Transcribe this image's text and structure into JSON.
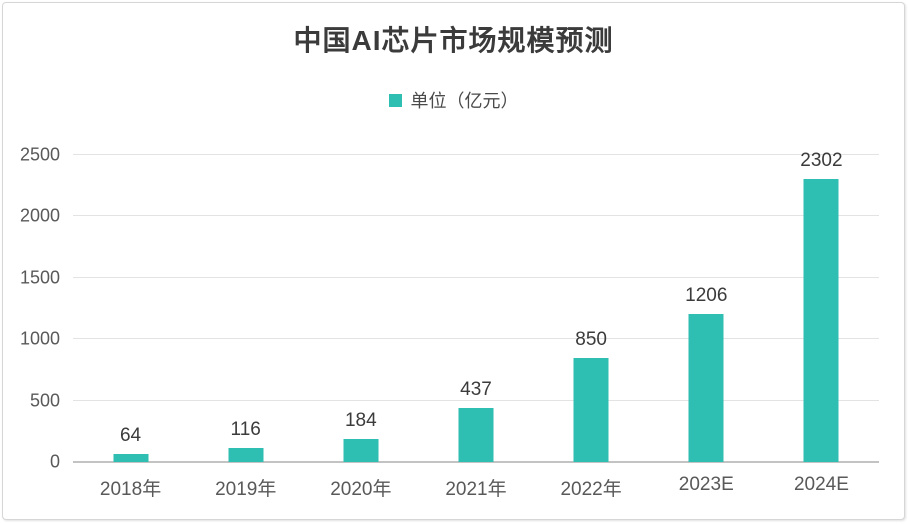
{
  "chart_title": "中国AI芯片市场规模预测",
  "legend": {
    "label": "单位（亿元）"
  },
  "chart_data": {
    "type": "bar",
    "title": "中国AI芯片市场规模预测",
    "categories": [
      "2018年",
      "2019年",
      "2020年",
      "2021年",
      "2022年",
      "2023E",
      "2024E"
    ],
    "values": [
      64,
      116,
      184,
      437,
      850,
      1206,
      2302
    ],
    "data_labels": [
      "64",
      "116",
      "184",
      "437",
      "850",
      "1206",
      "2302"
    ],
    "legend_entries": [
      "单位（亿元）"
    ],
    "legend_position": "top",
    "xlabel": "",
    "ylabel": "",
    "ylim": [
      0,
      2500
    ],
    "yticks": [
      0,
      500,
      1000,
      1500,
      2000,
      2500
    ],
    "grid": true,
    "bar_color": "#2FBEB2"
  },
  "colors": {
    "bar": "#2FBEB2",
    "gridline": "#E3E3E3",
    "axis_line": "#C3C3C3",
    "tick_text": "#595959",
    "value_text": "#3B3B3B",
    "title_text": "#3B3B3B",
    "card_border": "#D6D6D6",
    "background": "#FFFFFF"
  }
}
